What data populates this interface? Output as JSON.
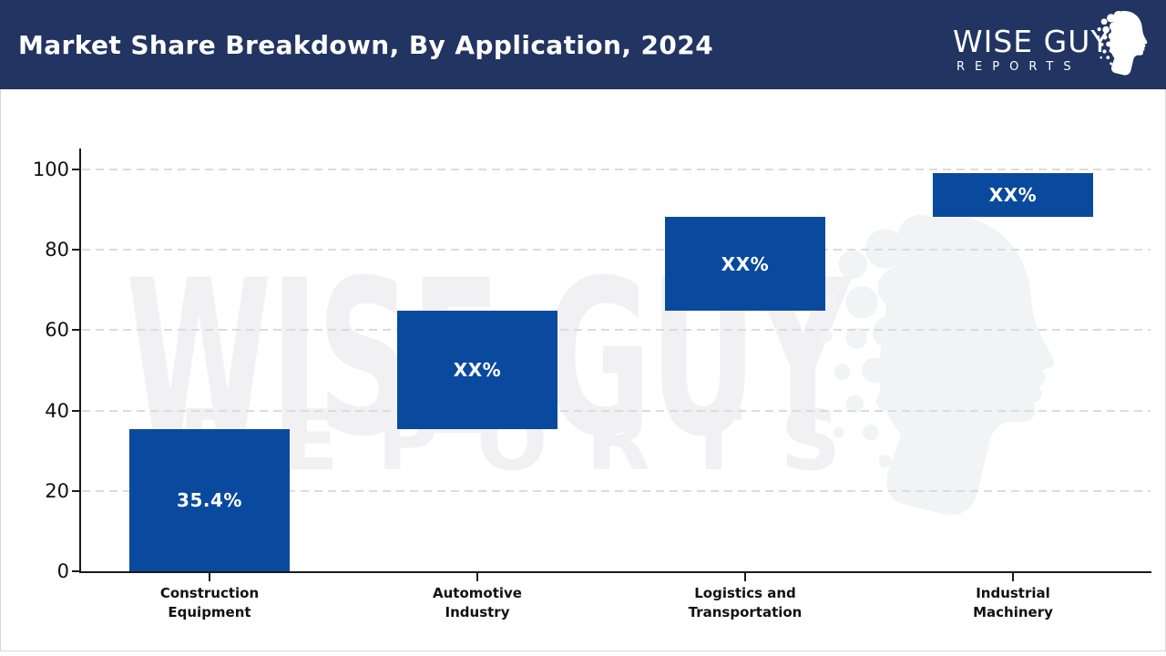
{
  "header": {
    "title": "Market Share Breakdown, By Application, 2024",
    "logo": {
      "line1": "WISE GUY",
      "line2": "REPORTS"
    }
  },
  "watermark": {
    "line1": "WISE GUY",
    "line2": "REPORTS"
  },
  "colors": {
    "header_bg": "#213462",
    "bar": "#0a4a9e",
    "title_text": "#ffffff",
    "axis": "#1a1a1a",
    "grid": "#dcdcdc",
    "value_label": "#ffffff",
    "watermark": "#f1f1f3"
  },
  "chart_data": {
    "type": "bar",
    "subtype": "waterfall",
    "title": "Market Share Breakdown, By Application, 2024",
    "categories": [
      "Construction\nEquipment",
      "Automotive\nIndustry",
      "Logistics and\nTransportation",
      "Industrial\nMachinery"
    ],
    "segments": [
      {
        "category": "Construction Equipment",
        "start": 0,
        "end": 35.4,
        "label": "35.4%"
      },
      {
        "category": "Automotive Industry",
        "start": 35.4,
        "end": 64.8,
        "label": "XX%"
      },
      {
        "category": "Logistics and Transportation",
        "start": 64.8,
        "end": 88.2,
        "label": "XX%"
      },
      {
        "category": "Industrial Machinery",
        "start": 88.2,
        "end": 99.2,
        "label": "XX%"
      }
    ],
    "ylim": [
      0,
      100
    ],
    "yticks": [
      0,
      20,
      40,
      60,
      80,
      100
    ],
    "grid": "dashed-horizontal",
    "legend": "none",
    "bar_color": "#0a4a9e"
  }
}
